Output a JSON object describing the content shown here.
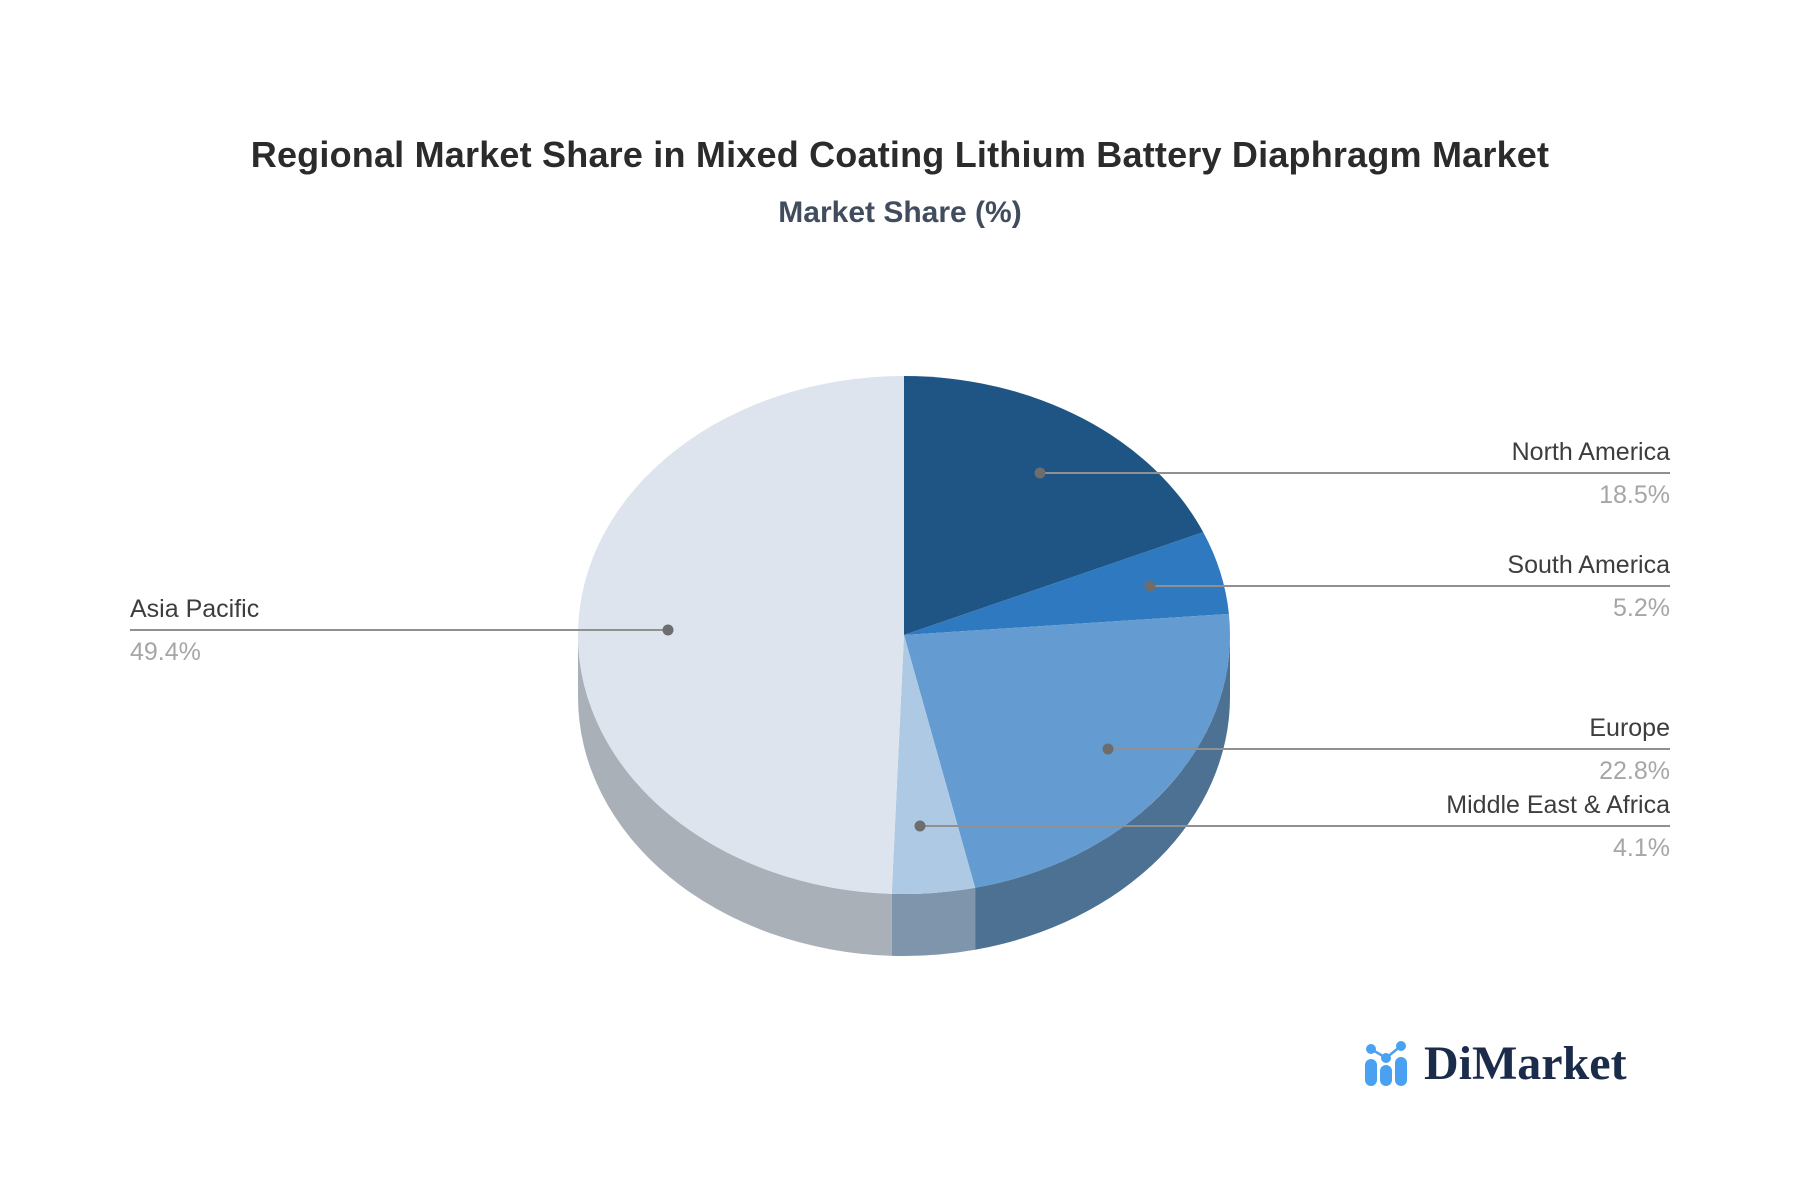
{
  "chart_data": {
    "type": "pie",
    "title": "Regional Market Share in Mixed Coating Lithium Battery Diaphragm Market",
    "subtitle": "Market Share (%)",
    "unit": "%",
    "start_angle_deg": 0,
    "direction": "clockwise",
    "legend_position": "callouts",
    "effect": "3d-depth",
    "slices": [
      {
        "label": "North America",
        "value": 18.5,
        "pct_label": "18.5%",
        "color": "#1e5585",
        "rim_color": "#174264",
        "label_side": "right"
      },
      {
        "label": "South America",
        "value": 5.2,
        "pct_label": "5.2%",
        "color": "#2e79bf",
        "rim_color": "#235b90",
        "label_side": "right"
      },
      {
        "label": "Europe",
        "value": 22.8,
        "pct_label": "22.8%",
        "color": "#649cd2",
        "rim_color": "#4d7193",
        "label_side": "right"
      },
      {
        "label": "Middle East & Africa",
        "value": 4.1,
        "pct_label": "4.1%",
        "color": "#aec9e3",
        "rim_color": "#7e95ab",
        "label_side": "right"
      },
      {
        "label": "Asia Pacific",
        "value": 49.4,
        "pct_label": "49.4%",
        "color": "#dde4ee",
        "rim_color": "#a9b0b8",
        "label_side": "left"
      }
    ],
    "colors": {
      "label_text": "#3d3d3d",
      "pct_text": "#a6a6a6",
      "leader_line": "#909090",
      "leader_dot": "#6d6d6d"
    }
  },
  "footer": {
    "logo_text": "DiMarket",
    "logo_text_color": "#1b2b4a",
    "logo_icon_color": "#4aa1f1"
  }
}
